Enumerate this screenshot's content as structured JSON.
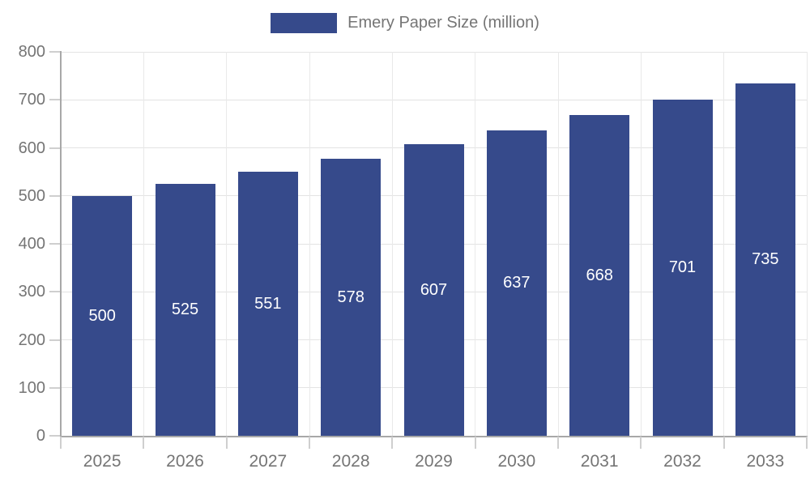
{
  "legend": {
    "label": "Emery Paper Size (million)",
    "position": "top-center"
  },
  "chart_data": {
    "type": "bar",
    "series_name": "Emery Paper Size (million)",
    "categories": [
      "2025",
      "2026",
      "2027",
      "2028",
      "2029",
      "2030",
      "2031",
      "2032",
      "2033"
    ],
    "values": [
      500,
      525,
      551,
      578,
      607,
      637,
      668,
      701,
      735
    ],
    "value_labels": [
      "500",
      "525",
      "551",
      "578",
      "607",
      "637",
      "668",
      "701",
      "735"
    ],
    "yticks": [
      "0",
      "100",
      "200",
      "300",
      "400",
      "500",
      "600",
      "700",
      "800"
    ],
    "ylim": [
      0,
      800
    ],
    "ytick_step": 100,
    "grid": {
      "horizontal": true,
      "vertical": true
    },
    "legend_position": "top-center",
    "colors": {
      "bar": "#364A8B",
      "bar_label": "#ffffff",
      "axis_line": "#a8a8a8",
      "grid_horizontal": "#e3e3e3",
      "grid_vertical": "#e9e9e9",
      "tick_mark": "#cfcfcf",
      "tick_label": "#757575",
      "background": "#ffffff"
    }
  }
}
